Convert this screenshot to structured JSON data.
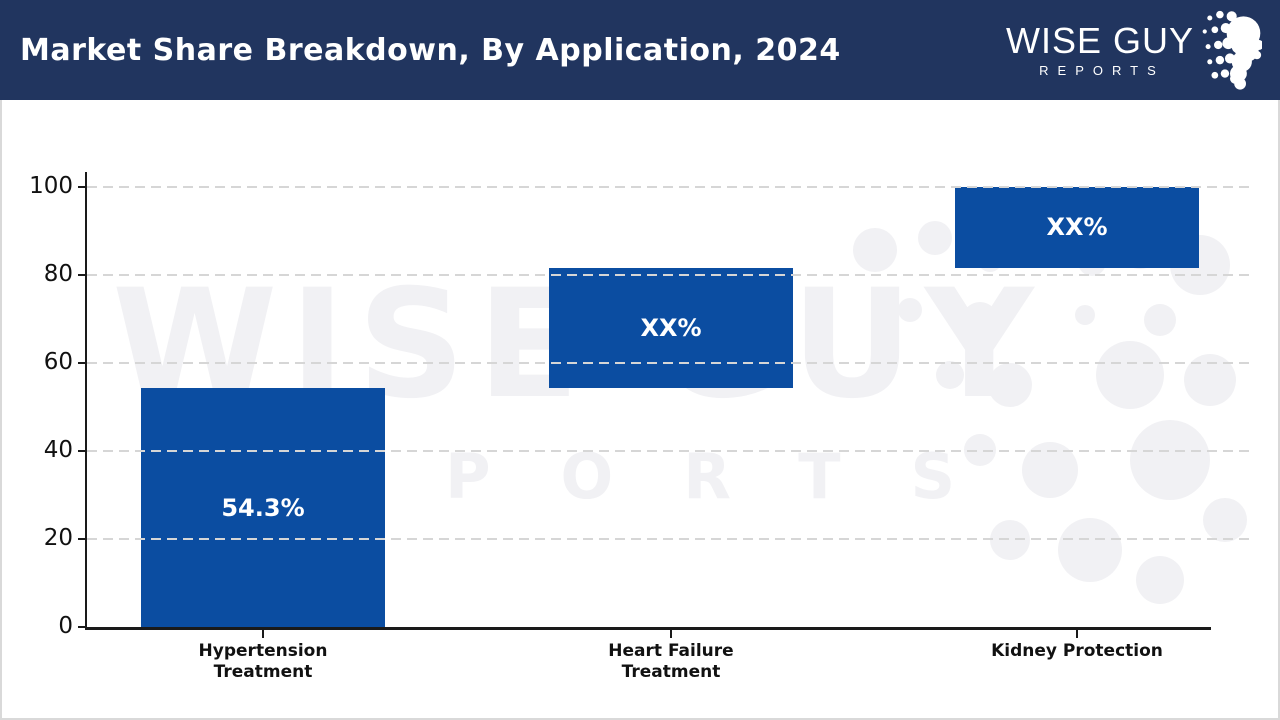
{
  "header": {
    "title": "Market Share Breakdown, By Application, 2024",
    "logo": {
      "name": "WISE GUY",
      "sub": "REPORTS"
    }
  },
  "watermark": {
    "name": "WISE GUY",
    "sub": "REPORTS"
  },
  "colors": {
    "header_bg": "#21355F",
    "header_text": "#FFFFFF",
    "bar": "#0B4DA1",
    "bar_label": "#FFFFFF",
    "grid": "#D6D6D6",
    "axis": "#1A1A1A",
    "tick_label": "#111111",
    "watermark": "#F1F1F4",
    "page_border": "#D9D9D9"
  },
  "chart_data": {
    "type": "bar",
    "subtype": "floating-segment waterfall (share breakdown, segments sum to 100%)",
    "title": "Market Share Breakdown, By Application, 2024",
    "categories": [
      [
        "Hypertension",
        "Treatment"
      ],
      [
        "Heart Failure",
        "Treatment"
      ],
      [
        "Kidney Protection"
      ]
    ],
    "segments": [
      {
        "category": "Hypertension Treatment",
        "start": 0,
        "end": 54.3,
        "value": 54.3,
        "label": "54.3%"
      },
      {
        "category": "Heart Failure Treatment",
        "start": 54.3,
        "end": 81.6,
        "value": 27.3,
        "label": "XX%"
      },
      {
        "category": "Kidney Protection",
        "start": 81.6,
        "end": 100,
        "value": 18.4,
        "label": "XX%"
      }
    ],
    "xlabel": "",
    "ylabel": "",
    "ylim": [
      0,
      100
    ],
    "yticks": [
      0,
      20,
      40,
      60,
      80,
      100
    ],
    "grid": "horizontal dashed, drawn over bars",
    "legend": null
  }
}
